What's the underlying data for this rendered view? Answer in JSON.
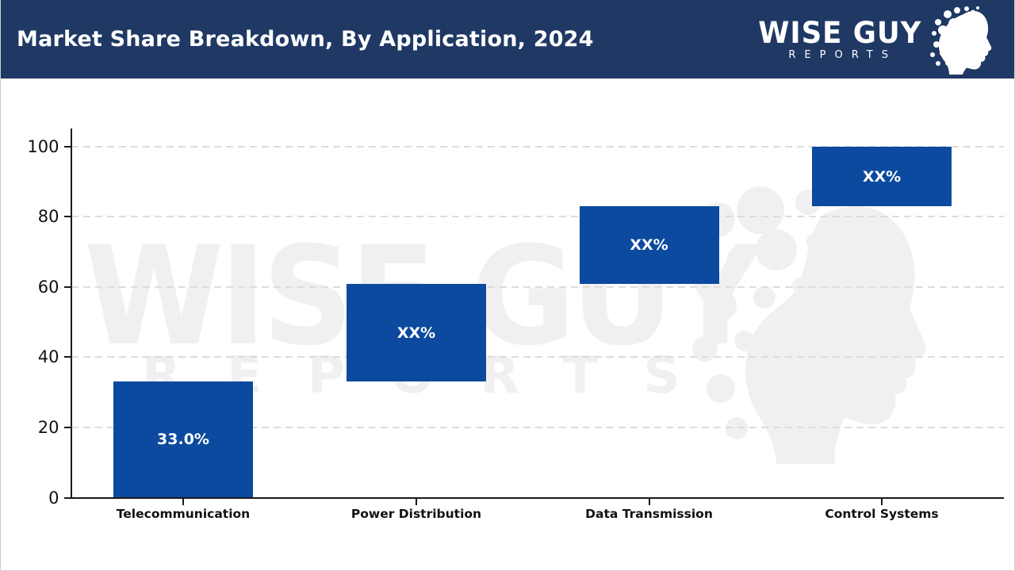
{
  "header": {
    "title": "Market Share Breakdown, By Application, 2024",
    "bg_color": "#1F3864",
    "logo": {
      "wordmark": "WISE GUY",
      "subtitle": "REPORTS"
    }
  },
  "watermark": {
    "wordmark": "WISE GUY",
    "subtitle": "REPORTS"
  },
  "chart_data": {
    "type": "bar",
    "subtype": "waterfall",
    "title": "Market Share Breakdown, By Application, 2024",
    "categories": [
      "Telecommunication",
      "Power Distribution",
      "Data Transmission",
      "Control Systems"
    ],
    "starts": [
      0,
      33,
      61,
      83
    ],
    "values": [
      33,
      28,
      22,
      17
    ],
    "bar_labels": [
      "33.0%",
      "XX%",
      "XX%",
      "XX%"
    ],
    "yticks": [
      0,
      20,
      40,
      60,
      80,
      100
    ],
    "ylim": [
      0,
      105
    ],
    "xlabel": "",
    "ylabel": "",
    "legend": "none",
    "grid": "horizontal-dashed",
    "bar_color": "#0B4A9E",
    "bar_label_color": "#FFFFFF",
    "grid_color": "#DCDCDC",
    "axis_color": "#1A1A1A"
  }
}
